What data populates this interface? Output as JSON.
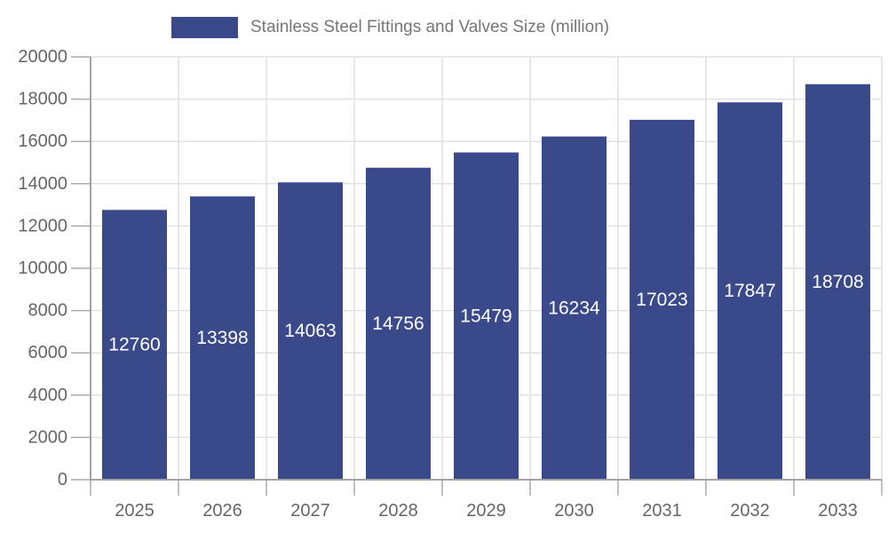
{
  "chart_data": {
    "type": "bar",
    "title": "Stainless Steel Fittings and Valves Size (million)",
    "categories": [
      "2025",
      "2026",
      "2027",
      "2028",
      "2029",
      "2030",
      "2031",
      "2032",
      "2033"
    ],
    "values": [
      12760,
      13398,
      14063,
      14756,
      15479,
      16234,
      17023,
      17847,
      18708
    ],
    "ylim": [
      0,
      20000
    ],
    "ytick_step": 2000,
    "grid": true,
    "legend_position": "top",
    "value_label_position": "inside-center",
    "colors": {
      "bar": "#39498A",
      "grid": "#E1E1E1",
      "axis": "#A3A3A3",
      "tick": "#ABABAB",
      "tick_text": "#666666",
      "title_text": "#757575",
      "value_text": "#FFFFFF",
      "background": "#FFFFFF"
    }
  }
}
